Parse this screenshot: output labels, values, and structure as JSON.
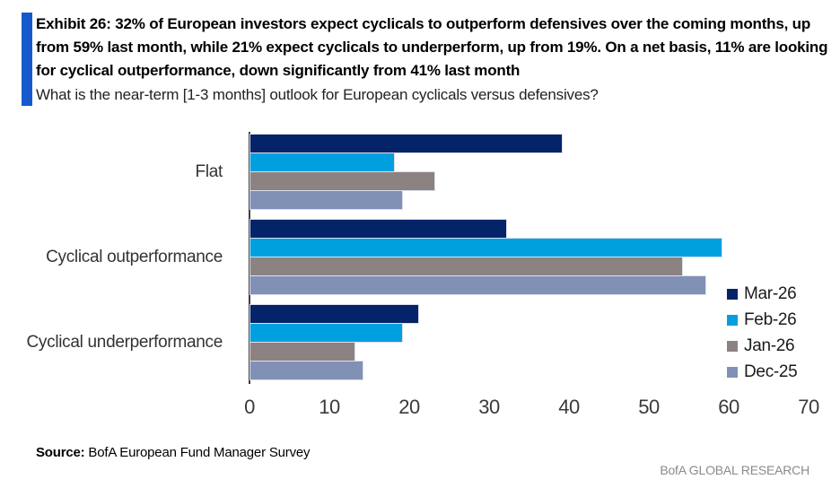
{
  "header": {
    "exhibit_title": "Exhibit 26: 32% of European investors expect cyclicals to outperform defensives over the coming months, up from 59% last month, while 21% expect cyclicals to underperform, up from 19%. On a net basis, 11% are looking for cyclical outperformance, down significantly from 41% last month",
    "subtitle": "What is the near-term [1-3 months] outlook for European cyclicals versus defensives?"
  },
  "chart_data": {
    "type": "bar",
    "orientation": "horizontal",
    "title": "What is the near-term [1-3 months] outlook for European cyclicals versus defensives?",
    "categories": [
      "Flat",
      "Cyclical outperformance",
      "Cyclical underperformance"
    ],
    "series": [
      {
        "name": "Mar-26",
        "color": "#052369",
        "values": [
          39,
          32,
          21
        ]
      },
      {
        "name": "Feb-26",
        "color": "#00A0DF",
        "values": [
          18,
          59,
          19
        ]
      },
      {
        "name": "Jan-26",
        "color": "#8C8281",
        "values": [
          23,
          54,
          13
        ]
      },
      {
        "name": "Dec-25",
        "color": "#8191B6",
        "values": [
          19,
          57,
          14
        ]
      }
    ],
    "xlim": [
      0,
      70
    ],
    "x_ticks": [
      0,
      10,
      20,
      30,
      40,
      50,
      60,
      70
    ],
    "xlabel": "",
    "ylabel": "",
    "grid": false,
    "legend_position": "right-inside"
  },
  "footer": {
    "source_label": "Source:",
    "source_text": " BofA European Fund Manager Survey",
    "branding": "BofA GLOBAL RESEARCH"
  },
  "colors": {
    "accent_bar": "#1659CE",
    "axis_line": "#3F3F3F",
    "bar_outline": "#DCDFEC"
  }
}
